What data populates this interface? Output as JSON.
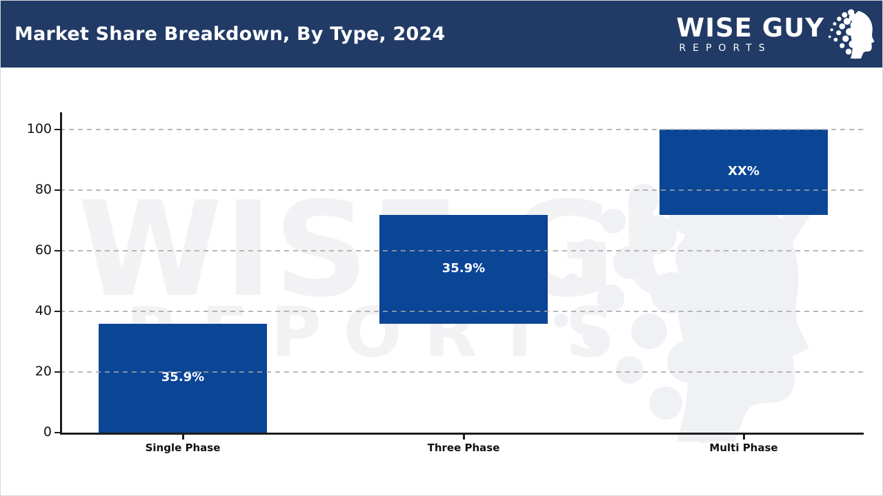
{
  "header": {
    "title": "Market Share Breakdown, By Type, 2024",
    "bg_color": "#213a66",
    "logo": {
      "wordmark": "WISE GUY",
      "subtitle": "REPORTS"
    }
  },
  "watermark": {
    "wordmark": "WISE GUY",
    "subtitle": "REPORTS"
  },
  "chart_data": {
    "type": "bar",
    "subtype": "floating-segment-waterfall",
    "title": "Market Share Breakdown, By Type, 2024",
    "categories": [
      "Single Phase",
      "Three Phase",
      "Multi Phase"
    ],
    "series": [
      {
        "name": "Market share (%)",
        "segments": [
          {
            "category": "Single Phase",
            "start": 0,
            "end": 35.9,
            "label": "35.9%"
          },
          {
            "category": "Three Phase",
            "start": 35.9,
            "end": 71.8,
            "label": "35.9%"
          },
          {
            "category": "Multi Phase",
            "start": 71.8,
            "end": 100,
            "label": "XX%"
          }
        ]
      }
    ],
    "values_displayed": [
      "35.9%",
      "35.9%",
      "XX%"
    ],
    "xlabel": "",
    "ylabel": "",
    "ylim": [
      0,
      100
    ],
    "yticks": [
      0,
      20,
      40,
      60,
      80,
      100
    ],
    "grid": "horizontal-dashed",
    "legend": "none",
    "colors": {
      "bar": "#0b4596",
      "bar_label": "#ffffff",
      "axis": "#1c1c1c",
      "gridline": "#cfcfcf",
      "tick_label": "#111111"
    }
  }
}
